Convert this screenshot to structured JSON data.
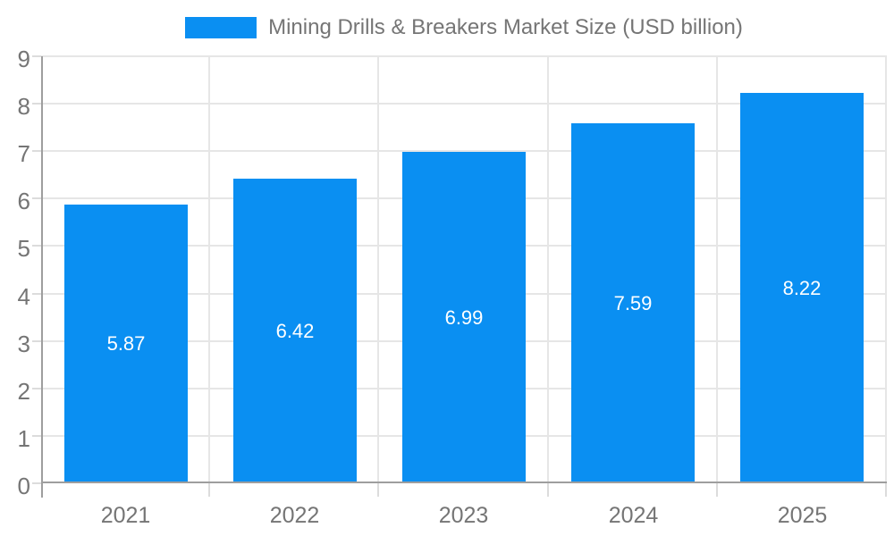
{
  "chart_data": {
    "type": "bar",
    "title": "Mining Drills & Breakers Market Size (USD billion)",
    "categories": [
      "2021",
      "2022",
      "2023",
      "2024",
      "2025"
    ],
    "series": [
      {
        "name": "Mining Drills & Breakers Market Size (USD billion)",
        "values": [
          5.87,
          6.42,
          6.99,
          7.59,
          8.22
        ]
      }
    ],
    "bar_value_labels": [
      "5.87",
      "6.42",
      "6.99",
      "7.59",
      "8.22"
    ],
    "y_ticks": [
      "0",
      "1",
      "2",
      "3",
      "4",
      "5",
      "6",
      "7",
      "8",
      "9"
    ],
    "ylim": [
      0,
      9
    ],
    "xlabel": "",
    "ylabel": "",
    "grid": true,
    "legend_position": "top-center",
    "colors": {
      "bar": "#0A8FF2",
      "axis": "#9e9e9e",
      "gridline": "#e6e6e6",
      "tick": "#dcdcdc",
      "axis_text": "#757575",
      "title_text": "#757575",
      "bar_label": "#ffffff"
    }
  }
}
